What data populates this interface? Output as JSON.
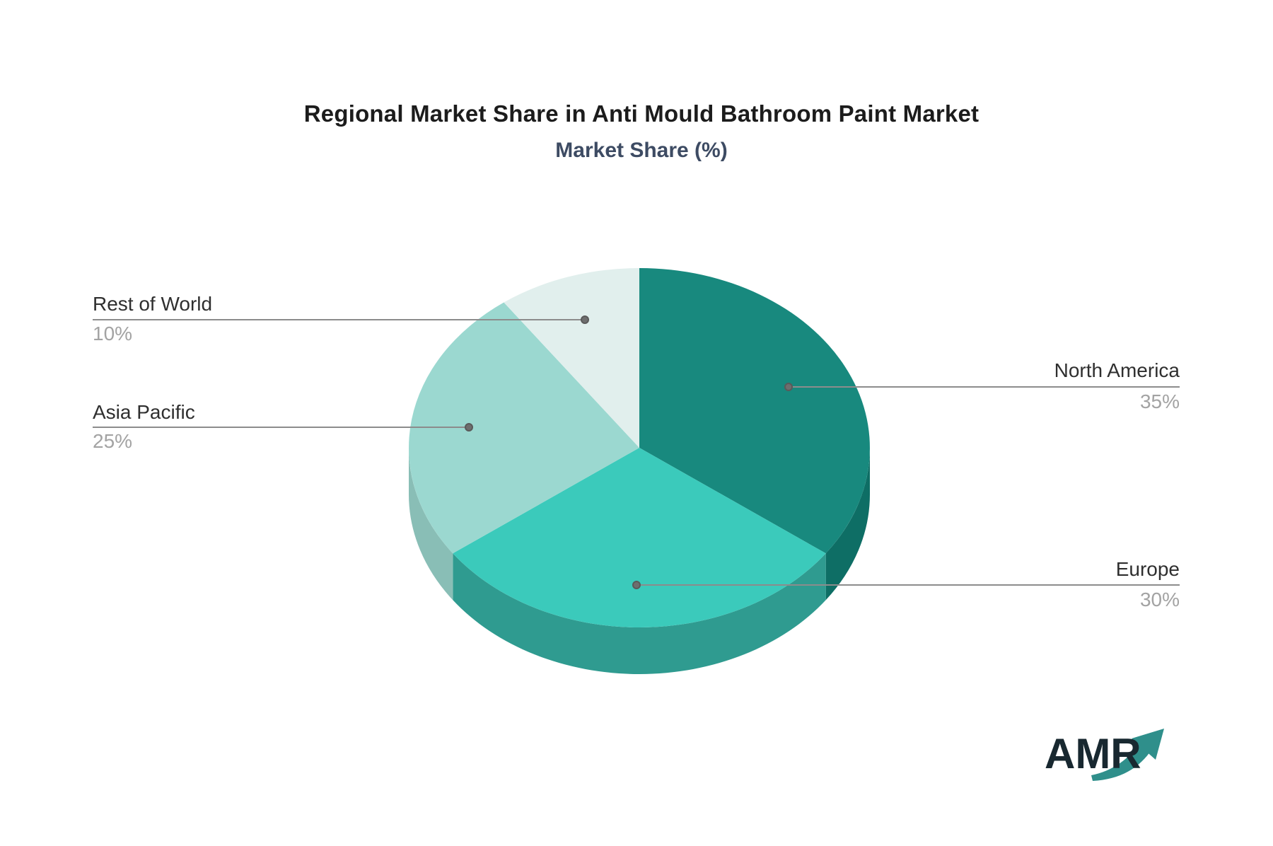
{
  "title": "Regional Market Share in Anti Mould Bathroom Paint Market",
  "subtitle": "Market Share (%)",
  "chart_data": {
    "type": "pie",
    "style": "3d",
    "title": "Regional Market Share in Anti Mould Bathroom Paint Market",
    "subtitle": "Market Share (%)",
    "unit": "%",
    "start_angle_deg": 0,
    "direction": "clockwise",
    "legend_position": "callout-labels",
    "grid": false,
    "segments": [
      {
        "label": "North America",
        "value": 35,
        "display": "35%",
        "color": "#18897e",
        "side_color": "#0e6e65"
      },
      {
        "label": "Europe",
        "value": 30,
        "display": "30%",
        "color": "#3bcabb",
        "side_color": "#2f9b90"
      },
      {
        "label": "Asia Pacific",
        "value": 25,
        "display": "25%",
        "color": "#9bd8d0",
        "side_color": "#89beb6"
      },
      {
        "label": "Rest of World",
        "value": 10,
        "display": "10%",
        "color": "#e1efed",
        "side_color": "#c4ddd9"
      }
    ]
  },
  "colors": {
    "background": "#ffffff",
    "title_text": "#1c1c1c",
    "subtitle_text": "#3d4b63",
    "label_text": "#2f2f2f",
    "percent_text": "#a3a3a3",
    "leader_line": "#8c8c8c",
    "leader_dot": "#6e6e6e",
    "logo_text": "#182830",
    "logo_arrow": "#2f8f8b"
  },
  "logo": {
    "text": "AMR",
    "arrow_icon": "trend-up-arrow"
  }
}
